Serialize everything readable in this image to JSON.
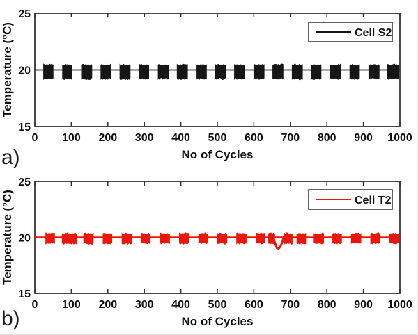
{
  "figure": {
    "panel_count": 2
  },
  "chart_data": [
    {
      "type": "line",
      "panel_label": "a)",
      "title": "",
      "xlabel": "No of Cycles",
      "ylabel": "Temperature (°C)",
      "xlim": [
        0,
        1000
      ],
      "ylim": [
        15,
        25
      ],
      "xticks": [
        0,
        100,
        200,
        300,
        400,
        500,
        600,
        700,
        800,
        900,
        1000
      ],
      "yticks": [
        15,
        20,
        25
      ],
      "grid": false,
      "legend": {
        "label": "Cell S2",
        "position": "top-right"
      },
      "series": [
        {
          "name": "Cell S2",
          "color": "#161616",
          "baseline_value": 20,
          "burst_high": 20.55,
          "burst_low": 19.1,
          "burst_centers": [
            37,
            89,
            142,
            194,
            247,
            299,
            352,
            404,
            457,
            509,
            561,
            614,
            666,
            719,
            771,
            824,
            876,
            929,
            981
          ],
          "burst_widths": [
            28,
            28,
            30,
            28,
            30,
            28,
            30,
            30,
            28,
            30,
            30,
            30,
            30,
            30,
            28,
            30,
            28,
            30,
            34
          ]
        }
      ]
    },
    {
      "type": "line",
      "panel_label": "b)",
      "title": "",
      "xlabel": "No of Cycles",
      "ylabel": "Temperature (°C)",
      "xlim": [
        0,
        1000
      ],
      "ylim": [
        15,
        25
      ],
      "xticks": [
        0,
        100,
        200,
        300,
        400,
        500,
        600,
        700,
        800,
        900,
        1000
      ],
      "yticks": [
        15,
        20,
        25
      ],
      "grid": false,
      "legend": {
        "label": "Cell T2",
        "position": "top-right"
      },
      "series": [
        {
          "name": "Cell T2",
          "color": "#ed1408",
          "baseline_value": 20,
          "burst_high": 20.45,
          "burst_low": 19.35,
          "burst_centers": [
            42,
            95,
            147,
            199,
            252,
            304,
            356,
            409,
            461,
            513,
            566,
            618,
            648,
            694,
            730,
            778,
            828,
            880,
            932,
            984
          ],
          "burst_widths": [
            26,
            42,
            28,
            26,
            28,
            26,
            28,
            28,
            26,
            28,
            28,
            26,
            20,
            24,
            26,
            28,
            26,
            28,
            26,
            28
          ],
          "anomaly": [
            [
              652,
              20.1
            ],
            [
              658,
              19.5
            ],
            [
              663,
              19.05
            ],
            [
              668,
              19.0
            ],
            [
              673,
              19.2
            ],
            [
              678,
              19.6
            ],
            [
              683,
              20.1
            ]
          ]
        }
      ]
    }
  ]
}
